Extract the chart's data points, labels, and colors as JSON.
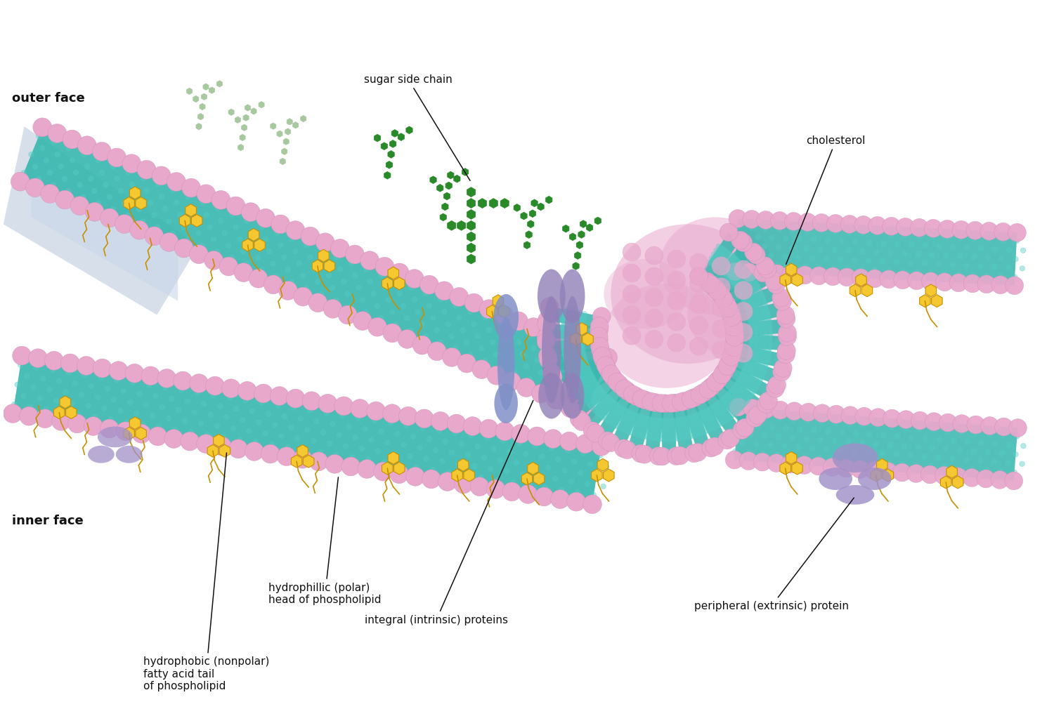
{
  "background_color": "#ffffff",
  "phospholipid_head_color": "#e8a8cc",
  "phospholipid_tail_color": "#3ab8b0",
  "phospholipid_tail_light": "#6ed0c8",
  "cholesterol_color": "#f5c832",
  "cholesterol_outline": "#c89000",
  "sugar_chain_dark": "#2a8a2a",
  "sugar_chain_light": "#a8c8a0",
  "integral_protein_color": "#8090c8",
  "integral_protein_color2": "#9080b8",
  "peripheral_protein_color": "#a090c8",
  "label_color": "#111111",
  "label_fontsize": 11,
  "outer_face_label": "outer face",
  "inner_face_label": "inner face",
  "sugar_side_chain_label": "sugar side chain",
  "cholesterol_label": "cholesterol",
  "hydrophillic_label": "hydrophillic (polar)\nhead of phospholipid",
  "hydrophobic_label": "hydrophobic (nonpolar)\nfatty acid tail\nof phospholipid",
  "integral_label": "integral (intrinsic) proteins",
  "peripheral_label": "peripheral (extrinsic) protein",
  "figsize": [
    15,
    10
  ],
  "dpi": 100
}
